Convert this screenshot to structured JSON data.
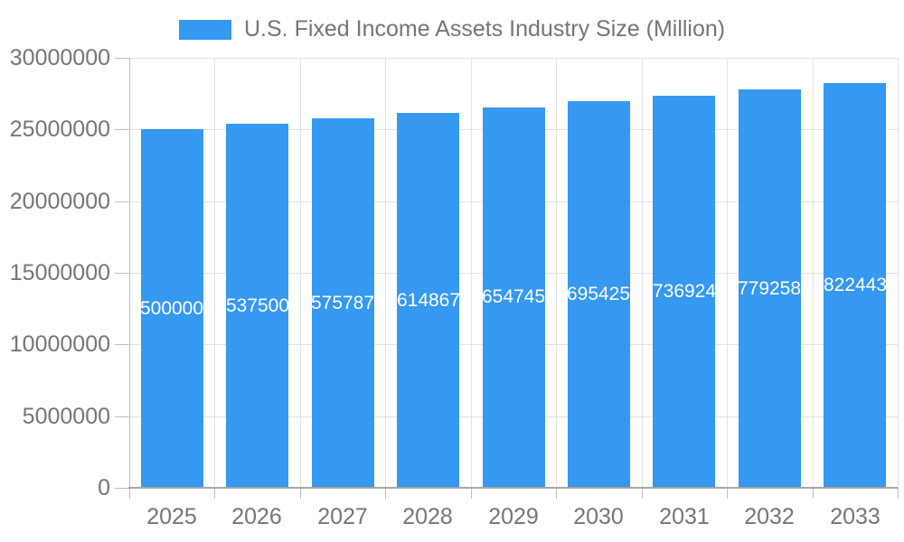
{
  "legend": {
    "label": "U.S. Fixed Income Assets Industry Size (Million)"
  },
  "chart_data": {
    "type": "bar",
    "title": "U.S. Fixed Income Assets Industry Size (Million)",
    "categories": [
      "2025",
      "2026",
      "2027",
      "2028",
      "2029",
      "2030",
      "2031",
      "2032",
      "2033"
    ],
    "values": [
      25000000,
      25375000,
      25757875,
      26148673,
      26547453,
      26954253,
      27369248,
      27792587,
      28224433
    ],
    "xlabel": "",
    "ylabel": "",
    "ylim": [
      0,
      30000000
    ],
    "y_tick_values": [
      0,
      5000000,
      10000000,
      15000000,
      20000000,
      25000000,
      30000000
    ],
    "y_tick_labels": [
      "0",
      "5000000",
      "10000000",
      "15000000",
      "20000000",
      "25000000",
      "30000000"
    ],
    "grid": true,
    "legend_position": "top",
    "data_labels": "inside-center"
  },
  "colors": {
    "bar": "#3598F1",
    "data_label": "#FFFFFF",
    "axis_label": "#757575",
    "axis_line": "#A6A6A6",
    "gridline": "#E2E2E2",
    "tick": "#BDBDBD",
    "background": "#FFFFFF"
  }
}
